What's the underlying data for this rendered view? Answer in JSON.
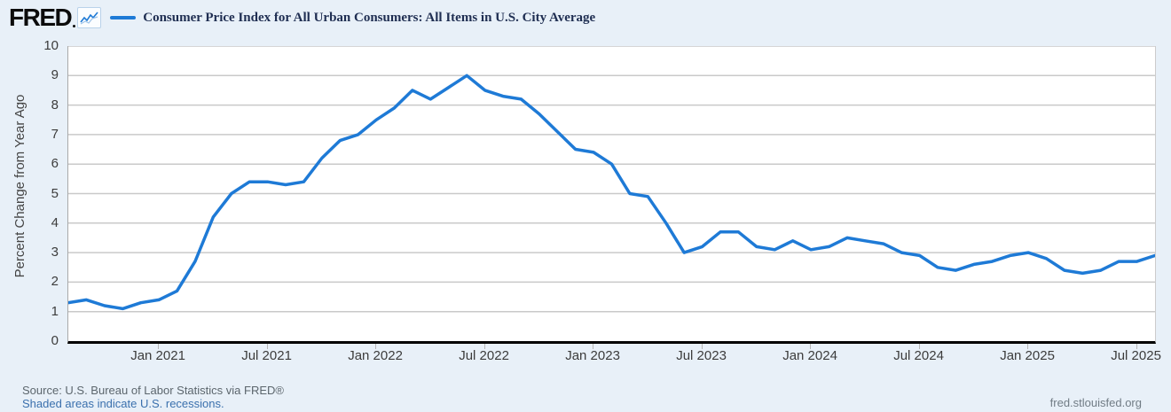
{
  "header": {
    "logo_text": "FRED",
    "series_title": "Consumer Price Index for All Urban Consumers: All Items in U.S. City Average"
  },
  "chart": {
    "y_axis_title": "Percent Change from Year Ago",
    "y_ticks": [
      0,
      1,
      2,
      3,
      4,
      5,
      6,
      7,
      8,
      9,
      10
    ],
    "x_ticks": [
      {
        "label": "Jan 2021",
        "month_index": 5
      },
      {
        "label": "Jul 2021",
        "month_index": 11
      },
      {
        "label": "Jan 2022",
        "month_index": 17
      },
      {
        "label": "Jul 2022",
        "month_index": 23
      },
      {
        "label": "Jan 2023",
        "month_index": 29
      },
      {
        "label": "Jul 2023",
        "month_index": 35
      },
      {
        "label": "Jan 2024",
        "month_index": 41
      },
      {
        "label": "Jul 2024",
        "month_index": 47
      },
      {
        "label": "Jan 2025",
        "month_index": 53
      },
      {
        "label": "Jul 2025",
        "month_index": 59
      }
    ],
    "colors": {
      "line": "#1e7ad6",
      "grid": "#c9c9c9",
      "plot_bg": "#ffffff",
      "page_bg": "#e8f0f8",
      "zero_axis": "#000000",
      "title_text": "#1f2e52"
    }
  },
  "chart_data": {
    "type": "line",
    "title": "Consumer Price Index for All Urban Consumers: All Items in U.S. City Average",
    "xlabel": "",
    "ylabel": "Percent Change from Year Ago",
    "ylim": [
      0,
      10
    ],
    "grid": "horizontal",
    "legend_position": "top-left",
    "frequency": "monthly",
    "x_start": "2020-08",
    "x_end": "2025-08",
    "x_tick_labels": [
      "Jan 2021",
      "Jul 2021",
      "Jan 2022",
      "Jul 2022",
      "Jan 2023",
      "Jul 2023",
      "Jan 2024",
      "Jul 2024",
      "Jan 2025",
      "Jul 2025"
    ],
    "series": [
      {
        "name": "Consumer Price Index for All Urban Consumers: All Items in U.S. City Average",
        "color": "#1e7ad6",
        "dates": [
          "2020-08",
          "2020-09",
          "2020-10",
          "2020-11",
          "2020-12",
          "2021-01",
          "2021-02",
          "2021-03",
          "2021-04",
          "2021-05",
          "2021-06",
          "2021-07",
          "2021-08",
          "2021-09",
          "2021-10",
          "2021-11",
          "2021-12",
          "2022-01",
          "2022-02",
          "2022-03",
          "2022-04",
          "2022-05",
          "2022-06",
          "2022-07",
          "2022-08",
          "2022-09",
          "2022-10",
          "2022-11",
          "2022-12",
          "2023-01",
          "2023-02",
          "2023-03",
          "2023-04",
          "2023-05",
          "2023-06",
          "2023-07",
          "2023-08",
          "2023-09",
          "2023-10",
          "2023-11",
          "2023-12",
          "2024-01",
          "2024-02",
          "2024-03",
          "2024-04",
          "2024-05",
          "2024-06",
          "2024-07",
          "2024-08",
          "2024-09",
          "2024-10",
          "2024-11",
          "2024-12",
          "2025-01",
          "2025-02",
          "2025-03",
          "2025-04",
          "2025-05",
          "2025-06",
          "2025-07",
          "2025-08"
        ],
        "values": [
          1.3,
          1.4,
          1.2,
          1.1,
          1.3,
          1.4,
          1.7,
          2.7,
          4.2,
          5.0,
          5.4,
          5.4,
          5.3,
          5.4,
          6.2,
          6.8,
          7.0,
          7.5,
          7.9,
          8.5,
          8.2,
          8.6,
          9.0,
          8.5,
          8.3,
          8.2,
          7.7,
          7.1,
          6.5,
          6.4,
          6.0,
          5.0,
          4.9,
          4.0,
          3.0,
          3.2,
          3.7,
          3.7,
          3.2,
          3.1,
          3.4,
          3.1,
          3.2,
          3.5,
          3.4,
          3.3,
          3.0,
          2.9,
          2.5,
          2.4,
          2.6,
          2.7,
          2.9,
          3.0,
          2.8,
          2.4,
          2.3,
          2.4,
          2.7,
          2.7,
          2.9
        ]
      }
    ]
  },
  "footer": {
    "source": "Source: U.S. Bureau of Labor Statistics via FRED®",
    "recession_note": "Shaded areas indicate U.S. recessions.",
    "site_link": "fred.stlouisfed.org"
  }
}
